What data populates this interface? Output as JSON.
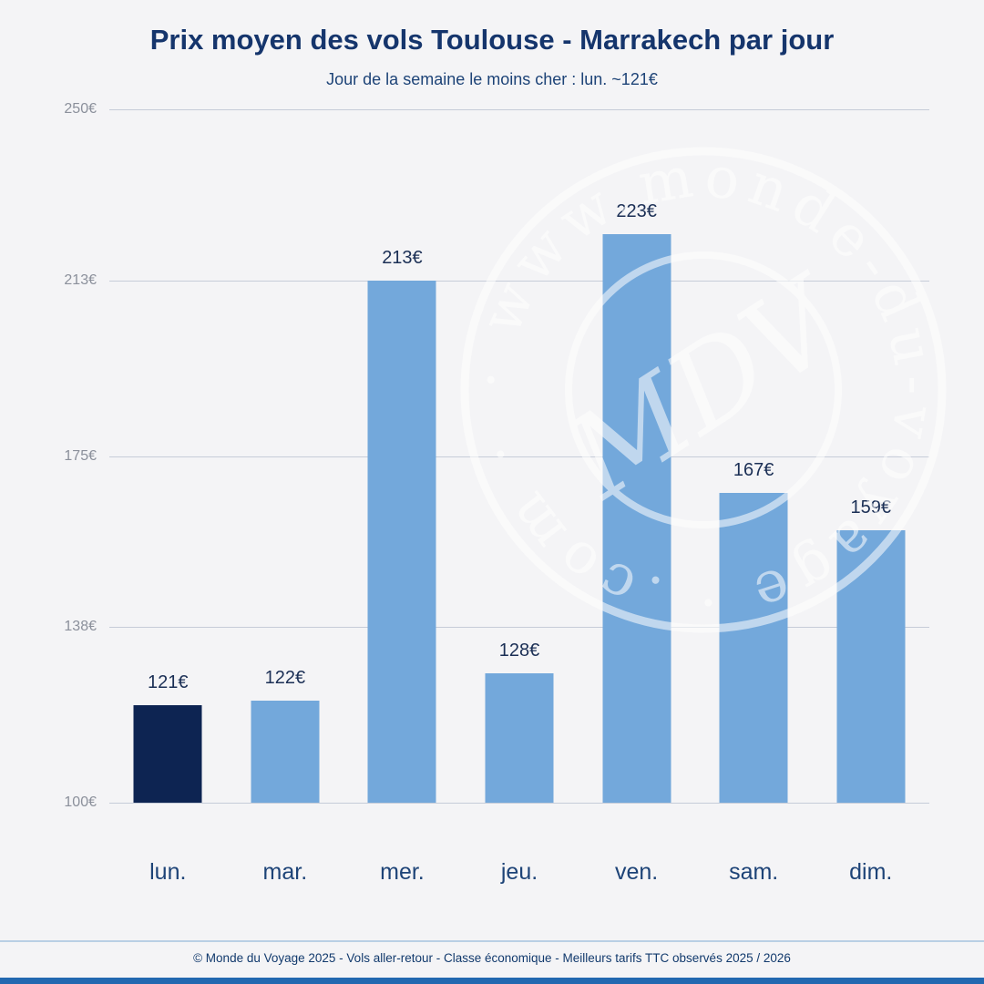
{
  "header": {
    "title": "Prix moyen des vols Toulouse - Marrakech par jour",
    "subtitle": "Jour de la semaine le moins cher : lun. ~121€"
  },
  "chart_data": {
    "type": "bar",
    "title": "Prix moyen des vols Toulouse - Marrakech par jour",
    "subtitle": "Jour de la semaine le moins cher : lun. ~121€",
    "categories": [
      "lun.",
      "mar.",
      "mer.",
      "jeu.",
      "ven.",
      "sam.",
      "dim."
    ],
    "values": [
      121,
      122,
      213,
      128,
      223,
      167,
      159
    ],
    "value_labels": [
      "121€",
      "122€",
      "213€",
      "128€",
      "223€",
      "167€",
      "159€"
    ],
    "ylim": [
      100,
      250
    ],
    "yticks": [
      100,
      138,
      175,
      213,
      250
    ],
    "ytick_labels": [
      "100€",
      "138€",
      "175€",
      "213€",
      "250€"
    ],
    "grid": true,
    "legend": "none",
    "bar_color": "#73a8db",
    "highlight_color": "#0d2452",
    "highlight_index": 0
  },
  "watermark": {
    "circle_text": "· www.monde-du-voyage · .com ·",
    "center_text": "MDV"
  },
  "footer": {
    "text": "© Monde du Voyage 2025 - Vols aller-retour - Classe économique - Meilleurs tarifs TTC observés 2025 / 2026"
  }
}
